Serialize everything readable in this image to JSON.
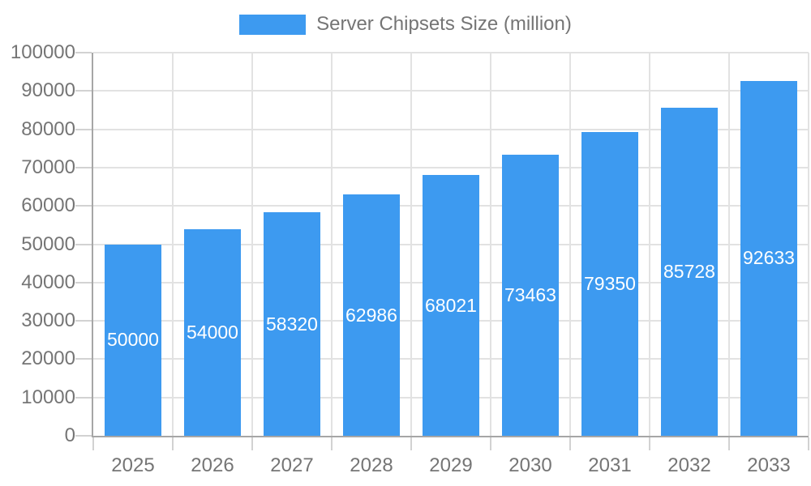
{
  "legend": {
    "label": "Server Chipsets Size (million)"
  },
  "colors": {
    "bar": "#3D9AF0",
    "grid": "#E2E2E2",
    "axis": "#A6A6A6",
    "tick": "#D2D2D2",
    "axis_label": "#757575",
    "value_label": "#FFFFFF",
    "background": "#FFFFFF"
  },
  "chart_data": {
    "type": "bar",
    "title": "Server Chipsets Size (million)",
    "categories": [
      "2025",
      "2026",
      "2027",
      "2028",
      "2029",
      "2030",
      "2031",
      "2032",
      "2033"
    ],
    "values": [
      50000,
      54000,
      58320,
      62986,
      68021,
      73463,
      79350,
      85728,
      92633
    ],
    "xlabel": "",
    "ylabel": "",
    "ylim": [
      0,
      100000
    ],
    "ytick_step": 10000,
    "y_tick_labels": [
      "0",
      "10000",
      "20000",
      "30000",
      "40000",
      "50000",
      "60000",
      "70000",
      "80000",
      "90000",
      "100000"
    ],
    "grid": true,
    "legend_position": "top-center",
    "value_labels": "inside-center",
    "single_series": true
  }
}
